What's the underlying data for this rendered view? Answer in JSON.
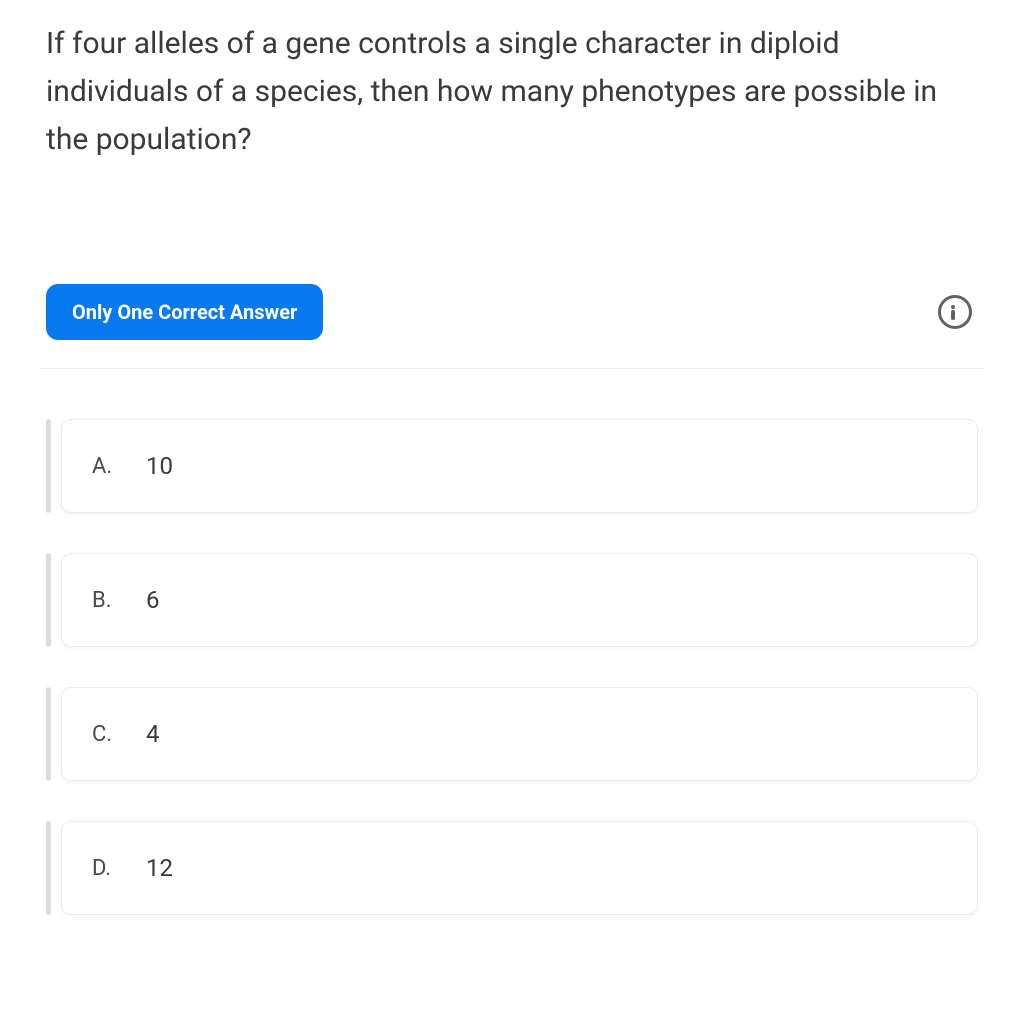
{
  "question": {
    "text": "If four alleles of a gene controls a single character in diploid individuals of a species, then how many phenotypes are possible in the population?"
  },
  "badge": {
    "label": "Only One Correct Answer",
    "background_color": "#0879ee",
    "text_color": "#ffffff"
  },
  "info_icon": {
    "name": "info",
    "color": "#5f6368"
  },
  "options": [
    {
      "letter": "A.",
      "value": "10"
    },
    {
      "letter": "B.",
      "value": "6"
    },
    {
      "letter": "C.",
      "value": "4"
    },
    {
      "letter": "D.",
      "value": "12"
    }
  ],
  "styling": {
    "question_fontsize": 30,
    "option_letter_fontsize": 22,
    "option_value_fontsize": 24,
    "badge_fontsize": 20,
    "option_bar_color": "#d9dde2",
    "option_border_color": "#e9ecef",
    "divider_color": "#ececec",
    "text_color": "#3a3a3a",
    "background_color": "#ffffff"
  }
}
